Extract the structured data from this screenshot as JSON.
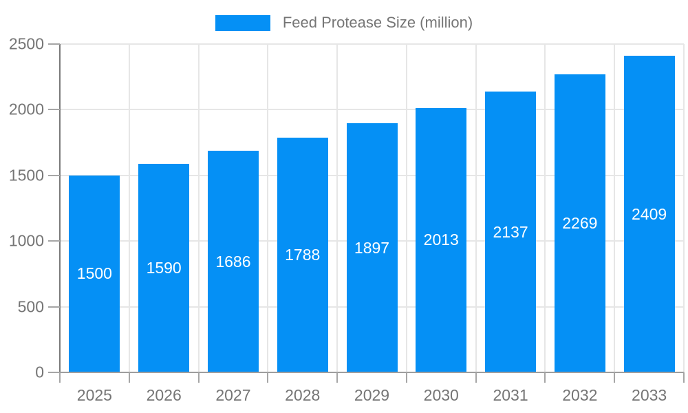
{
  "chart_data": {
    "type": "bar",
    "title": "",
    "legend": "Feed Protease Size (million)",
    "legend_position": "top",
    "categories": [
      "2025",
      "2026",
      "2027",
      "2028",
      "2029",
      "2030",
      "2031",
      "2032",
      "2033"
    ],
    "values": [
      1500,
      1590,
      1686,
      1788,
      1897,
      2013,
      2137,
      2269,
      2409
    ],
    "xlabel": "",
    "ylabel": "",
    "ylim": [
      0,
      2500
    ],
    "yticks": [
      0,
      500,
      1000,
      1500,
      2000,
      2500
    ],
    "grid": true,
    "bar_labels_inside": true,
    "colors": {
      "bar": "#0590f5",
      "bar_label": "#ffffff",
      "axis_text": "#757575",
      "gridline": "#e6e6e6",
      "axis_line_y": "#7a7a7a",
      "axis_line_x": "#9e9e9e",
      "tick": "#a6a6a6",
      "background": "#ffffff"
    }
  }
}
